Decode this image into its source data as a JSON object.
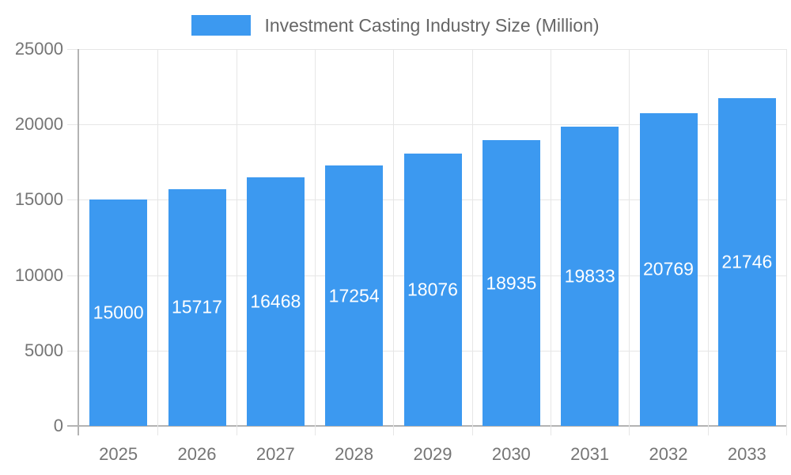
{
  "chart_data": {
    "type": "bar",
    "title": "",
    "legend_label": "Investment Casting Industry Size (Million)",
    "legend_position": "top-center",
    "categories": [
      "2025",
      "2026",
      "2027",
      "2028",
      "2029",
      "2030",
      "2031",
      "2032",
      "2033"
    ],
    "series": [
      {
        "name": "Investment Casting Industry Size (Million)",
        "values": [
          15000,
          15717,
          16468,
          17254,
          18076,
          18935,
          19833,
          20769,
          21746
        ]
      }
    ],
    "value_labels": "inside-center-white",
    "xlabel": "",
    "ylabel": "",
    "ylim": [
      0,
      25000
    ],
    "yticks": [
      0,
      5000,
      10000,
      15000,
      20000,
      25000
    ],
    "grid": true,
    "colors": {
      "bar": "#3C99F0",
      "value_label_text": "#ffffff",
      "axis_text": "#757575",
      "legend_text": "#666666",
      "gridline": "#e6e6e6",
      "axis_line": "#b3b3b3",
      "background": "#ffffff"
    }
  }
}
